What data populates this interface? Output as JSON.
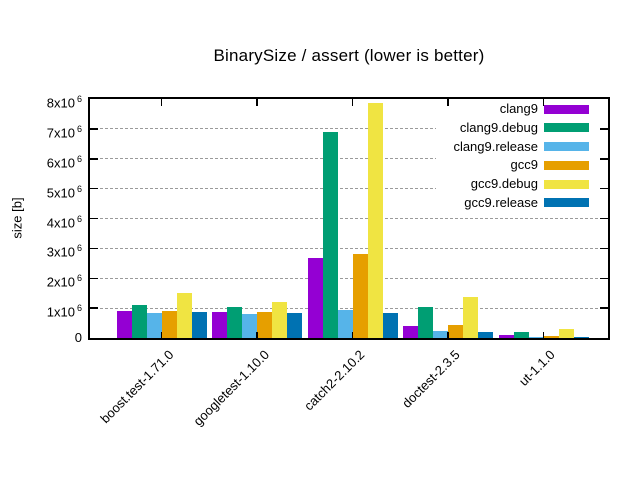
{
  "chart_data": {
    "type": "bar",
    "title": "BinarySize / assert (lower is better)",
    "ylabel": "size [b]",
    "xlabel": "",
    "categories": [
      "boost.test-1.71.0",
      "googletest-1.10.0",
      "catch2-2.10.2",
      "doctest-2.3.5",
      "ut-1.1.0"
    ],
    "series": [
      {
        "name": "clang9",
        "color": "#9400D3",
        "values": [
          890000,
          860000,
          2690000,
          390000,
          90000
        ]
      },
      {
        "name": "clang9.debug",
        "color": "#009E73",
        "values": [
          1120000,
          1030000,
          6900000,
          1040000,
          190000
        ]
      },
      {
        "name": "clang9.release",
        "color": "#56B4E9",
        "values": [
          850000,
          800000,
          950000,
          220000,
          30000
        ]
      },
      {
        "name": "gcc9",
        "color": "#E69F00",
        "values": [
          900000,
          860000,
          2800000,
          420000,
          80000
        ]
      },
      {
        "name": "gcc9.debug",
        "color": "#F0E442",
        "values": [
          1500000,
          1190000,
          7850000,
          1360000,
          300000
        ]
      },
      {
        "name": "gcc9.release",
        "color": "#0072B2",
        "values": [
          860000,
          850000,
          850000,
          200000,
          50000
        ]
      }
    ],
    "ylim": [
      0,
      8000000
    ],
    "y_ticks": [
      {
        "value": 0,
        "label": "0"
      },
      {
        "value": 1000000,
        "label": "1x10^6"
      },
      {
        "value": 2000000,
        "label": "2x10^6"
      },
      {
        "value": 3000000,
        "label": "3x10^6"
      },
      {
        "value": 4000000,
        "label": "4x10^6"
      },
      {
        "value": 5000000,
        "label": "5x10^6"
      },
      {
        "value": 6000000,
        "label": "6x10^6"
      },
      {
        "value": 7000000,
        "label": "7x10^6"
      },
      {
        "value": 8000000,
        "label": "8x10^6"
      }
    ],
    "grid": "horizontal-dashed",
    "grid_color": "#9a9a9a",
    "axis_color": "#000000",
    "legend_position": "inside-top-right",
    "legend_opaque": true
  }
}
